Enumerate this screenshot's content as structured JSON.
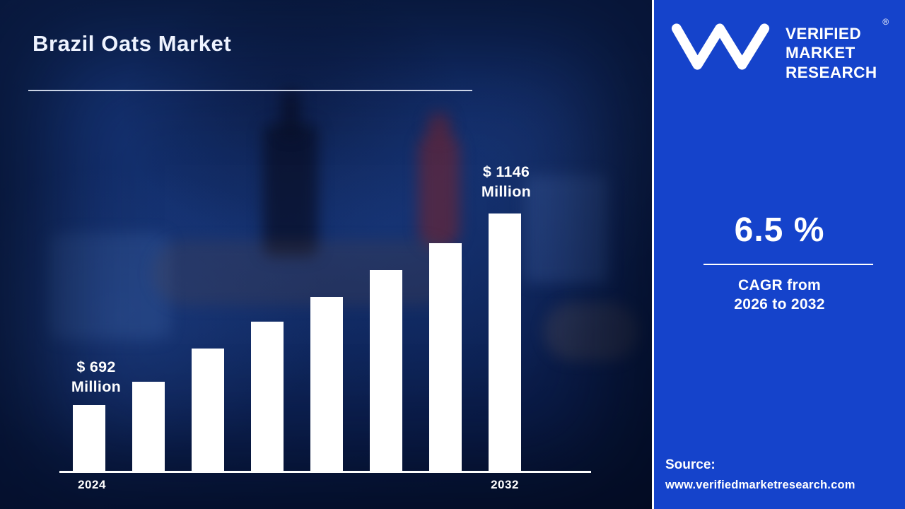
{
  "title": "Brazil Oats Market",
  "chart_data": {
    "type": "bar",
    "title": "Brazil Oats Market",
    "unit": "USD Million",
    "categories": [
      "2024",
      "",
      "",
      "",
      "",
      "",
      "",
      "2032"
    ],
    "values": [
      692,
      748,
      826,
      890,
      948,
      1012,
      1076,
      1146
    ],
    "x_tick_labels": [
      "2024",
      "2032"
    ],
    "annotations": [
      {
        "target": "first-bar",
        "value": 692,
        "lines": [
          "$ 692",
          "Million"
        ]
      },
      {
        "target": "last-bar",
        "value": 1146,
        "lines": [
          "$ 1146",
          "Million"
        ]
      }
    ],
    "bar_color": "#ffffff",
    "axis_color": "#ffffff",
    "gridlines": false,
    "y_axis_visible": false,
    "legend": "none"
  },
  "panel": {
    "brand": {
      "name_lines": [
        "VERIFIED",
        "MARKET",
        "RESEARCH"
      ],
      "registered_mark": "®"
    },
    "cagr_value": "6.5 %",
    "cagr_caption_line1": "CAGR from",
    "cagr_caption_line2": "2026 to 2032",
    "source_label": "Source:",
    "source_url": "www.verifiedmarketresearch.com",
    "background_color": "#1543cb",
    "text_color": "#ffffff"
  },
  "colors": {
    "left_background": "#0e2a63",
    "bar": "#ffffff",
    "panel_blue": "#1543cb"
  }
}
